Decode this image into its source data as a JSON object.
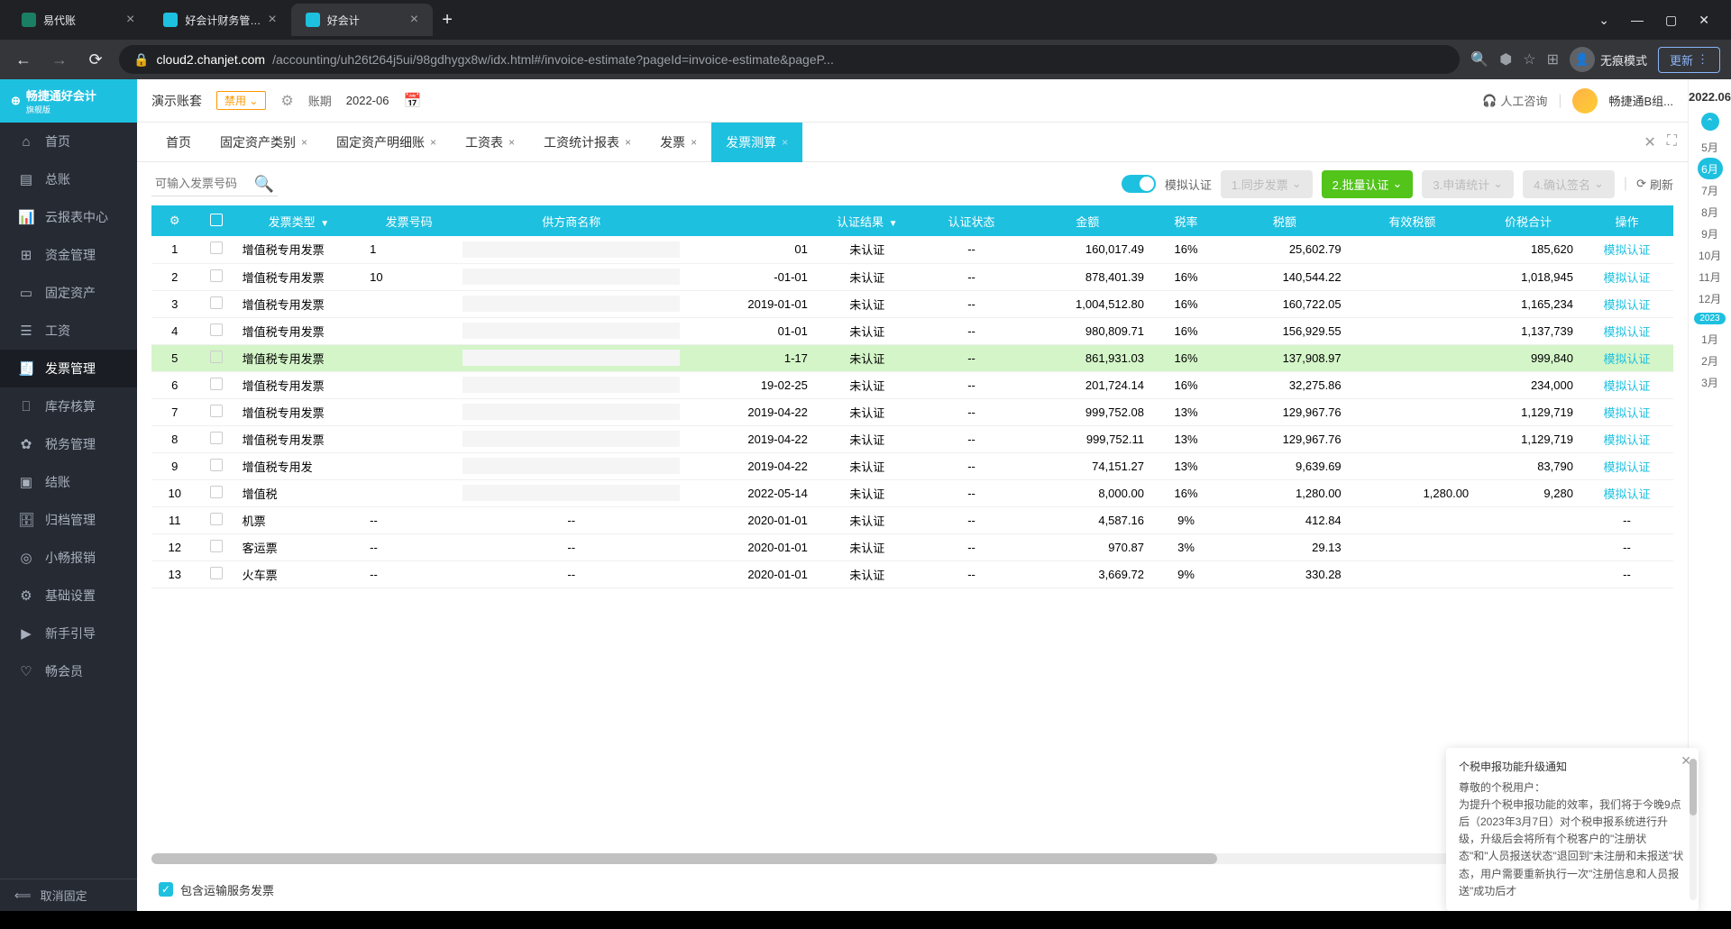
{
  "browser": {
    "tabs": [
      {
        "icon_bg": "#1a7f64",
        "title": "易代账"
      },
      {
        "icon_bg": "#1ec0e0",
        "title": "好会计财务管理软件购买价格及…"
      },
      {
        "icon_bg": "#1ec0e0",
        "title": "好会计",
        "active": true
      }
    ],
    "url_host": "cloud2.chanjet.com",
    "url_path": "/accounting/uh26t264j5ui/98gdhygx8w/idx.html#/invoice-estimate?pageId=invoice-estimate&pageP...",
    "incognito_label": "无痕模式",
    "update_label": "更新"
  },
  "app": {
    "logo_title": "畅捷通好会计",
    "logo_sub": "旗舰版",
    "nav": [
      {
        "icon": "⌂",
        "label": "首页"
      },
      {
        "icon": "▤",
        "label": "总账"
      },
      {
        "icon": "📊",
        "label": "云报表中心"
      },
      {
        "icon": "⊞",
        "label": "资金管理"
      },
      {
        "icon": "▭",
        "label": "固定资产"
      },
      {
        "icon": "☰",
        "label": "工资"
      },
      {
        "icon": "🧾",
        "label": "发票管理",
        "active": true
      },
      {
        "icon": "⎕",
        "label": "库存核算"
      },
      {
        "icon": "✿",
        "label": "税务管理"
      },
      {
        "icon": "▣",
        "label": "结账"
      },
      {
        "icon": "🗄",
        "label": "归档管理"
      },
      {
        "icon": "◎",
        "label": "小畅报销"
      },
      {
        "icon": "⚙",
        "label": "基础设置"
      },
      {
        "icon": "▶",
        "label": "新手引导"
      },
      {
        "icon": "♡",
        "label": "畅会员"
      }
    ],
    "pin_label": "取消固定"
  },
  "header": {
    "account_name": "演示账套",
    "disable_label": "禁用",
    "period_label": "账期",
    "period_value": "2022-06",
    "support_label": "人工咨询",
    "user_name": "畅捷通B组..."
  },
  "tabs": {
    "items": [
      {
        "label": "首页",
        "closable": false
      },
      {
        "label": "固定资产类别",
        "closable": true
      },
      {
        "label": "固定资产明细账",
        "closable": true
      },
      {
        "label": "工资表",
        "closable": true
      },
      {
        "label": "工资统计报表",
        "closable": true
      },
      {
        "label": "发票",
        "closable": true
      },
      {
        "label": "发票测算",
        "closable": true,
        "active": true
      }
    ]
  },
  "toolbar": {
    "search_placeholder": "可输入发票号码",
    "toggle_label": "模拟认证",
    "steps": [
      {
        "label": "1.同步发票",
        "state": "disabled",
        "dd": true
      },
      {
        "label": "2.批量认证",
        "state": "primary",
        "dd": true
      },
      {
        "label": "3.申请统计",
        "state": "disabled",
        "dd": true
      },
      {
        "label": "4.确认签名",
        "state": "disabled",
        "dd": true
      }
    ],
    "refresh_label": "刷新"
  },
  "table": {
    "headers": [
      "",
      "",
      "发票类型",
      "发票号码",
      "供方商名称",
      "",
      "认证结果",
      "认证状态",
      "金额",
      "税率",
      "税额",
      "有效税额",
      "价税合计",
      "操作"
    ],
    "header_dd": {
      "2": true,
      "6": true
    },
    "rows": [
      {
        "idx": "1",
        "type": "增值税专用发票",
        "num": "1",
        "date": "01",
        "result": "未认证",
        "status": "--",
        "amount": "160,017.49",
        "rate": "16%",
        "tax": "25,602.79",
        "valid": "",
        "total": "185,620",
        "action": "模拟认证"
      },
      {
        "idx": "2",
        "type": "增值税专用发票",
        "num": "10",
        "date": "-01-01",
        "result": "未认证",
        "status": "--",
        "amount": "878,401.39",
        "rate": "16%",
        "tax": "140,544.22",
        "valid": "",
        "total": "1,018,945",
        "action": "模拟认证"
      },
      {
        "idx": "3",
        "type": "增值税专用发票",
        "num": "",
        "date": "2019-01-01",
        "result": "未认证",
        "status": "--",
        "amount": "1,004,512.80",
        "rate": "16%",
        "tax": "160,722.05",
        "valid": "",
        "total": "1,165,234",
        "action": "模拟认证"
      },
      {
        "idx": "4",
        "type": "增值税专用发票",
        "num": "",
        "date": "01-01",
        "result": "未认证",
        "status": "--",
        "amount": "980,809.71",
        "rate": "16%",
        "tax": "156,929.55",
        "valid": "",
        "total": "1,137,739",
        "action": "模拟认证"
      },
      {
        "idx": "5",
        "type": "增值税专用发票",
        "num": "",
        "date": "1-17",
        "result": "未认证",
        "status": "--",
        "amount": "861,931.03",
        "rate": "16%",
        "tax": "137,908.97",
        "valid": "",
        "total": "999,840",
        "action": "模拟认证",
        "highlighted": true
      },
      {
        "idx": "6",
        "type": "增值税专用发票",
        "num": "",
        "date": "19-02-25",
        "result": "未认证",
        "status": "--",
        "amount": "201,724.14",
        "rate": "16%",
        "tax": "32,275.86",
        "valid": "",
        "total": "234,000",
        "action": "模拟认证"
      },
      {
        "idx": "7",
        "type": "增值税专用发票",
        "num": "",
        "date": "2019-04-22",
        "result": "未认证",
        "status": "--",
        "amount": "999,752.08",
        "rate": "13%",
        "tax": "129,967.76",
        "valid": "",
        "total": "1,129,719",
        "action": "模拟认证"
      },
      {
        "idx": "8",
        "type": "增值税专用发票",
        "num": "",
        "date": "2019-04-22",
        "result": "未认证",
        "status": "--",
        "amount": "999,752.11",
        "rate": "13%",
        "tax": "129,967.76",
        "valid": "",
        "total": "1,129,719",
        "action": "模拟认证"
      },
      {
        "idx": "9",
        "type": "增值税专用发",
        "num": "",
        "date": "2019-04-22",
        "result": "未认证",
        "status": "--",
        "amount": "74,151.27",
        "rate": "13%",
        "tax": "9,639.69",
        "valid": "",
        "total": "83,790",
        "action": "模拟认证"
      },
      {
        "idx": "10",
        "type": "增值税",
        "num": "",
        "date": "2022-05-14",
        "result": "未认证",
        "status": "--",
        "amount": "8,000.00",
        "rate": "16%",
        "tax": "1,280.00",
        "valid": "1,280.00",
        "total": "9,280",
        "action": "模拟认证"
      },
      {
        "idx": "11",
        "type": "机票",
        "num": "--",
        "supplier_dash": "--",
        "date": "2020-01-01",
        "result": "未认证",
        "status": "--",
        "amount": "4,587.16",
        "rate": "9%",
        "tax": "412.84",
        "valid": "",
        "total": "",
        "action": "--"
      },
      {
        "idx": "12",
        "type": "客运票",
        "num": "--",
        "supplier_dash": "--",
        "date": "2020-01-01",
        "result": "未认证",
        "status": "--",
        "amount": "970.87",
        "rate": "3%",
        "tax": "29.13",
        "valid": "",
        "total": "",
        "action": "--"
      },
      {
        "idx": "13",
        "type": "火车票",
        "num": "--",
        "supplier_dash": "--",
        "date": "2020-01-01",
        "result": "未认证",
        "status": "--",
        "amount": "3,669.72",
        "rate": "9%",
        "tax": "330.28",
        "valid": "",
        "total": "",
        "action": "--"
      }
    ],
    "footer_label": "包含运输服务发票"
  },
  "right_rail": {
    "year_label": "2022.06",
    "months": [
      "5月",
      "6月",
      "7月",
      "8月",
      "9月",
      "10月",
      "11月",
      "12月"
    ],
    "active_month": "6月",
    "year_badge": "2023",
    "months2": [
      "1月",
      "2月",
      "3月"
    ]
  },
  "notification": {
    "title": "个税申报功能升级通知",
    "greeting": "尊敬的个税用户：",
    "body": "为提升个税申报功能的效率，我们将于今晚9点后（2023年3月7日）对个税申报系统进行升级，升级后会将所有个税客户的\"注册状态\"和\"人员报送状态\"退回到\"未注册和未报送\"状态，用户需要重新执行一次\"注册信息和人员报送\"成功后才"
  }
}
